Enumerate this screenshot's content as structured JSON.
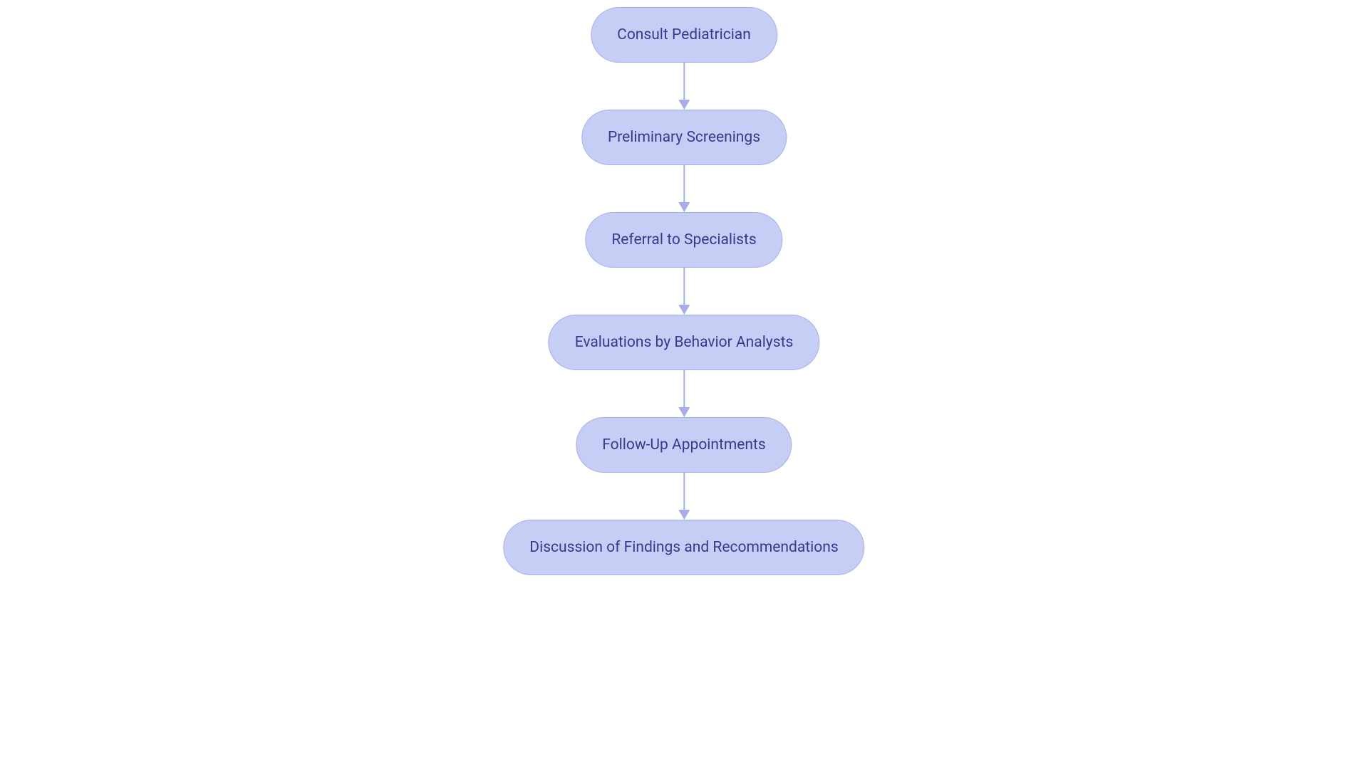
{
  "flowchart": {
    "type": "flowchart",
    "direction": "vertical",
    "background_color": "#ffffff",
    "node_style": {
      "fill_color": "#c7cef5",
      "border_color": "#a5aee8",
      "border_width": 1.5,
      "text_color": "#353a8e",
      "font_size": 21,
      "font_weight": 400,
      "shape": "pill",
      "border_radius": 39,
      "height": 78,
      "padding_horizontal": 36
    },
    "edge_style": {
      "line_color": "#a5aee8",
      "line_width": 2,
      "arrow_head_width": 16,
      "arrow_head_height": 14,
      "gap_length": 66
    },
    "nodes": [
      {
        "id": "n1",
        "label": "Consult Pediatrician"
      },
      {
        "id": "n2",
        "label": "Preliminary Screenings"
      },
      {
        "id": "n3",
        "label": "Referral to Specialists"
      },
      {
        "id": "n4",
        "label": "Evaluations by Behavior Analysts"
      },
      {
        "id": "n5",
        "label": "Follow-Up Appointments"
      },
      {
        "id": "n6",
        "label": "Discussion of Findings and Recommendations"
      }
    ],
    "edges": [
      {
        "from": "n1",
        "to": "n2"
      },
      {
        "from": "n2",
        "to": "n3"
      },
      {
        "from": "n3",
        "to": "n4"
      },
      {
        "from": "n4",
        "to": "n5"
      },
      {
        "from": "n5",
        "to": "n6"
      }
    ]
  }
}
